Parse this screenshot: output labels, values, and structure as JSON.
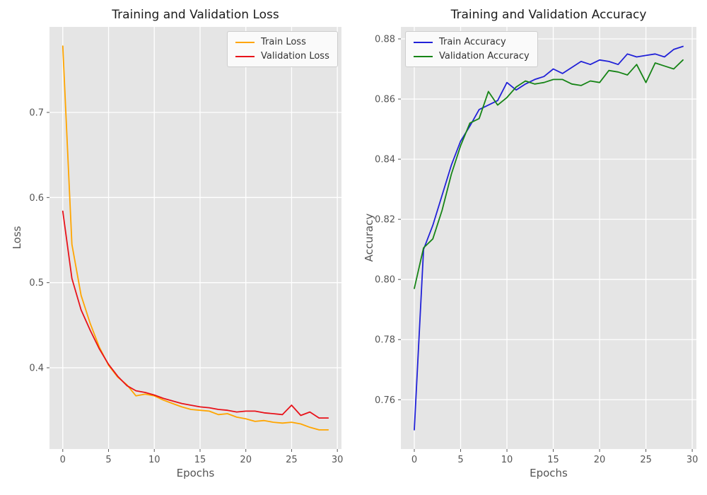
{
  "figure": {
    "background": "#ffffff",
    "axes_background": "#e5e5e5",
    "grid_color": "#ffffff",
    "tick_text_color": "#555555",
    "title_color": "#1c1c1c",
    "legend_background": "#fafafa",
    "legend_border": "#cdcdcd"
  },
  "chart_data": [
    {
      "type": "line",
      "title": "Training and Validation Loss",
      "xlabel": "Epochs",
      "ylabel": "Loss",
      "xlim": [
        -1.45,
        30.45
      ],
      "ylim": [
        0.3045,
        0.8005
      ],
      "xticks": [
        0,
        5,
        10,
        15,
        20,
        25,
        30
      ],
      "xtick_labels": [
        "0",
        "5",
        "10",
        "15",
        "20",
        "25",
        "30"
      ],
      "yticks": [
        0.4,
        0.5,
        0.6,
        0.7
      ],
      "ytick_labels": [
        "0.4",
        "0.5",
        "0.6",
        "0.7"
      ],
      "grid": true,
      "legend_position": "top-right",
      "x": [
        0,
        1,
        2,
        3,
        4,
        5,
        6,
        7,
        8,
        9,
        10,
        11,
        12,
        13,
        14,
        15,
        16,
        17,
        18,
        19,
        20,
        21,
        22,
        23,
        24,
        25,
        26,
        27,
        28,
        29
      ],
      "series": [
        {
          "name": "Train Loss",
          "color": "#ffa500",
          "values": [
            0.778,
            0.545,
            0.485,
            0.452,
            0.424,
            0.403,
            0.389,
            0.38,
            0.367,
            0.369,
            0.367,
            0.362,
            0.358,
            0.354,
            0.351,
            0.35,
            0.349,
            0.345,
            0.346,
            0.342,
            0.34,
            0.337,
            0.338,
            0.336,
            0.335,
            0.336,
            0.334,
            0.33,
            0.327,
            0.327
          ]
        },
        {
          "name": "Validation Loss",
          "color": "#e8121a",
          "values": [
            0.584,
            0.505,
            0.468,
            0.444,
            0.422,
            0.404,
            0.39,
            0.379,
            0.373,
            0.371,
            0.368,
            0.364,
            0.361,
            0.358,
            0.356,
            0.354,
            0.353,
            0.351,
            0.35,
            0.348,
            0.349,
            0.349,
            0.347,
            0.346,
            0.345,
            0.356,
            0.344,
            0.348,
            0.341,
            0.341
          ]
        }
      ]
    },
    {
      "type": "line",
      "title": "Training and Validation Accuracy",
      "xlabel": "Epochs",
      "ylabel": "Accuracy",
      "xlim": [
        -1.45,
        30.45
      ],
      "ylim": [
        0.7436,
        0.884
      ],
      "xticks": [
        0,
        5,
        10,
        15,
        20,
        25,
        30
      ],
      "xtick_labels": [
        "0",
        "5",
        "10",
        "15",
        "20",
        "25",
        "30"
      ],
      "yticks": [
        0.76,
        0.78,
        0.8,
        0.82,
        0.84,
        0.86,
        0.88
      ],
      "ytick_labels": [
        "0.76",
        "0.78",
        "0.80",
        "0.82",
        "0.84",
        "0.86",
        "0.88"
      ],
      "grid": true,
      "legend_position": "top-left",
      "x": [
        0,
        1,
        2,
        3,
        4,
        5,
        6,
        7,
        8,
        9,
        10,
        11,
        12,
        13,
        14,
        15,
        16,
        17,
        18,
        19,
        20,
        21,
        22,
        23,
        24,
        25,
        26,
        27,
        28,
        29
      ],
      "series": [
        {
          "name": "Train Accuracy",
          "color": "#2121d8",
          "values": [
            0.75,
            0.81,
            0.818,
            0.828,
            0.838,
            0.846,
            0.851,
            0.8565,
            0.858,
            0.8595,
            0.8655,
            0.863,
            0.865,
            0.8665,
            0.8675,
            0.87,
            0.8685,
            0.8705,
            0.8725,
            0.8715,
            0.873,
            0.8725,
            0.8715,
            0.875,
            0.874,
            0.8745,
            0.875,
            0.874,
            0.8765,
            0.8775
          ]
        },
        {
          "name": "Validation Accuracy",
          "color": "#168416",
          "values": [
            0.797,
            0.8105,
            0.8135,
            0.823,
            0.835,
            0.8445,
            0.852,
            0.8535,
            0.8625,
            0.858,
            0.8605,
            0.864,
            0.866,
            0.865,
            0.8655,
            0.8665,
            0.8665,
            0.865,
            0.8645,
            0.866,
            0.8655,
            0.8695,
            0.869,
            0.868,
            0.8715,
            0.8655,
            0.872,
            0.871,
            0.87,
            0.873
          ]
        }
      ]
    }
  ]
}
